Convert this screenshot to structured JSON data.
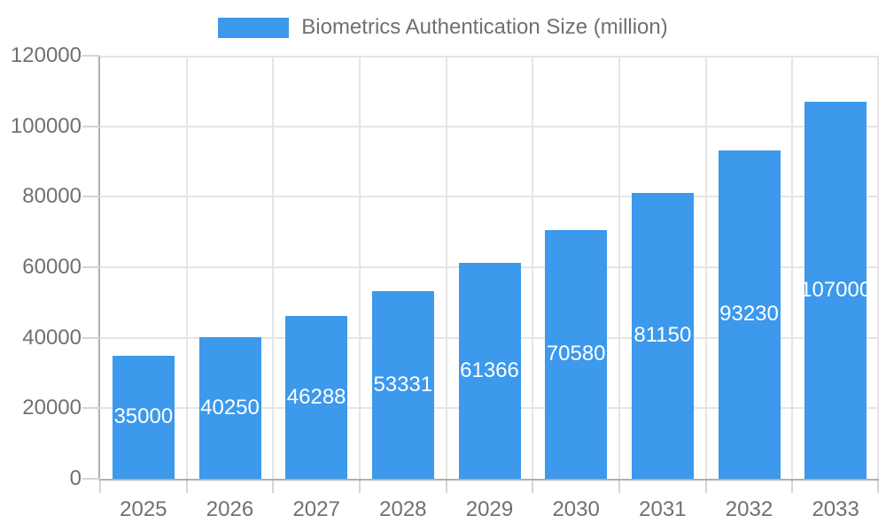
{
  "legend": {
    "label": "Biometrics Authentication Size (million)"
  },
  "colors": {
    "bar": "#3c99ec",
    "grid": "#e5e5e5",
    "axis": "#b0b0b0",
    "tick": "#d5d5d5",
    "text": "#707070",
    "bar_label": "#ffffff",
    "background": "#ffffff"
  },
  "chart_data": {
    "type": "bar",
    "title": "Biometrics Authentication Size (million)",
    "categories": [
      "2025",
      "2026",
      "2027",
      "2028",
      "2029",
      "2030",
      "2031",
      "2032",
      "2033"
    ],
    "series": [
      {
        "name": "Biometrics Authentication Size (million)",
        "values": [
          35000,
          40250,
          46288,
          53331,
          61366,
          70580,
          81150,
          93230,
          107000
        ]
      }
    ],
    "value_labels": [
      35000,
      40250,
      46288,
      53331,
      61366,
      70580,
      81150,
      93230,
      107000
    ],
    "xlabel": "",
    "ylabel": "",
    "ylim": [
      0,
      120000
    ],
    "yticks": [
      0,
      20000,
      40000,
      60000,
      80000,
      100000,
      120000
    ],
    "grid": true,
    "legend_position": "top",
    "value_label_position": "inside-center"
  }
}
